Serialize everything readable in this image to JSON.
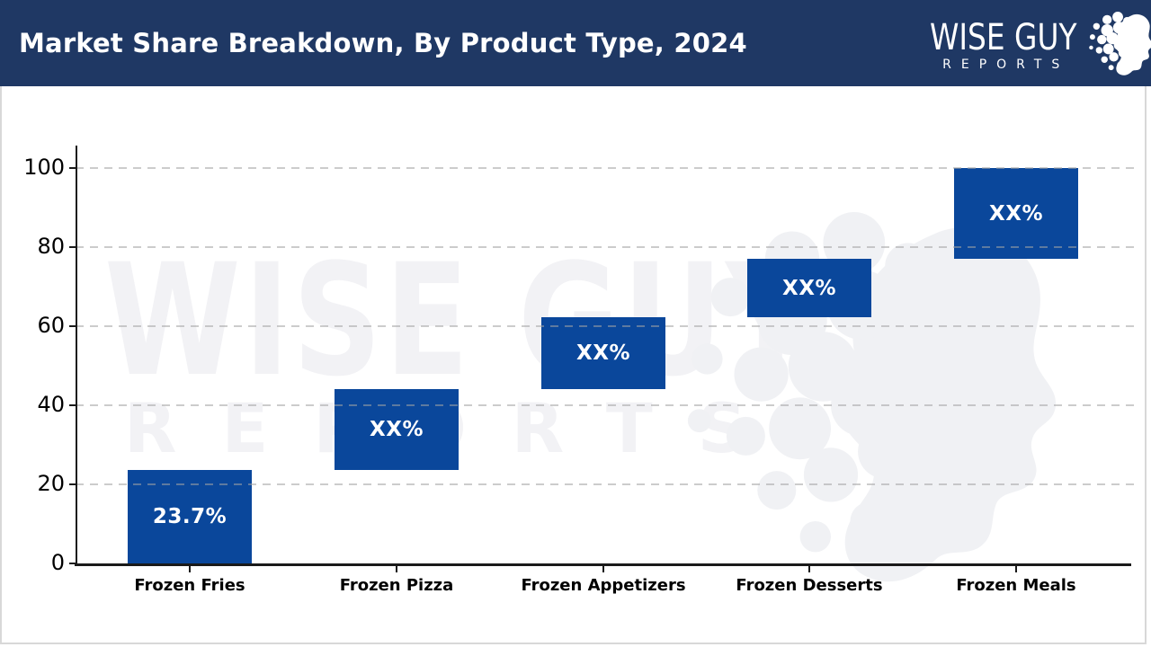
{
  "header": {
    "title": "Market Share Breakdown, By Product Type, 2024",
    "logo": {
      "line1": "WISE GUY",
      "line2": "REPORTS"
    }
  },
  "watermark": {
    "line1": "WISE GUY",
    "line2": "REPORTS"
  },
  "chart_data": {
    "type": "bar",
    "subtype": "waterfall",
    "title": "Market Share Breakdown, By Product Type, 2024",
    "categories": [
      "Frozen Fries",
      "Frozen Pizza",
      "Frozen Appetizers",
      "Frozen Desserts",
      "Frozen Meals"
    ],
    "segments": [
      {
        "category": "Frozen Fries",
        "start": 0,
        "end": 23.7,
        "value": 23.7,
        "label": "23.7%"
      },
      {
        "category": "Frozen Pizza",
        "start": 23.7,
        "end": 44.2,
        "value": 20.5,
        "label": "XX%"
      },
      {
        "category": "Frozen Appetizers",
        "start": 44.2,
        "end": 62.2,
        "value": 18.0,
        "label": "XX%"
      },
      {
        "category": "Frozen Desserts",
        "start": 62.2,
        "end": 77.0,
        "value": 14.8,
        "label": "XX%"
      },
      {
        "category": "Frozen Meals",
        "start": 77.0,
        "end": 100.0,
        "value": 23.0,
        "label": "XX%"
      }
    ],
    "xlabel": "",
    "ylabel": "",
    "yticks": [
      0,
      20,
      40,
      60,
      80,
      100
    ],
    "ylim": [
      0,
      100
    ],
    "grid": "horizontal-dashed",
    "legend": "none",
    "bar_color": "#0A479B",
    "bar_label_color": "#ffffff"
  },
  "colors": {
    "header_bg": "#1F3864",
    "bar": "#0A479B",
    "axis": "#1a1a1a",
    "gridline": "#a3a3a3",
    "watermark": "#f2f2f5",
    "frame_border": "#d8d8d8"
  }
}
